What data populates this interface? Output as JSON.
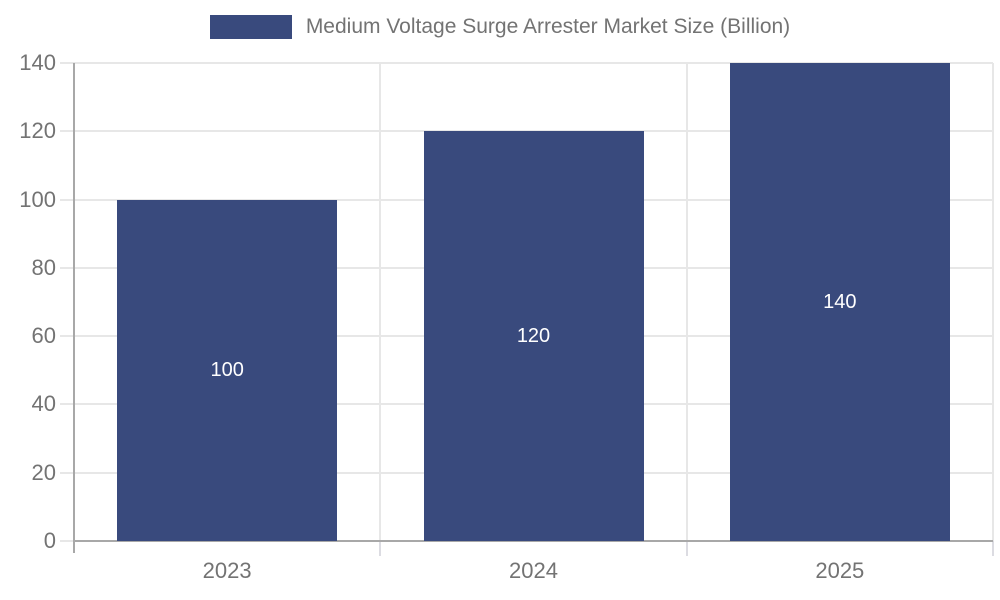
{
  "legend": {
    "label": "Medium Voltage Surge Arrester Market Size (Billion)",
    "swatch_color": "#394A7D"
  },
  "chart_data": {
    "type": "bar",
    "title": "Medium Voltage Surge Arrester Market Size (Billion)",
    "categories": [
      "2023",
      "2024",
      "2025"
    ],
    "values": [
      100,
      120,
      140
    ],
    "data_labels": [
      "100",
      "120",
      "140"
    ],
    "xlabel": "",
    "ylabel": "",
    "ylim": [
      0,
      140
    ],
    "yticks": [
      0,
      20,
      40,
      60,
      80,
      100,
      120,
      140
    ],
    "grid": true,
    "legend_position": "top",
    "bar_color": "#394A7D",
    "data_label_color": "#FFFFFF"
  },
  "colors": {
    "bar": "#394A7D",
    "grid": "#E7E7E7",
    "axis": "#A8A8A8",
    "tick": "#DCDCE2",
    "text": "#737373",
    "background": "#FFFFFF"
  }
}
